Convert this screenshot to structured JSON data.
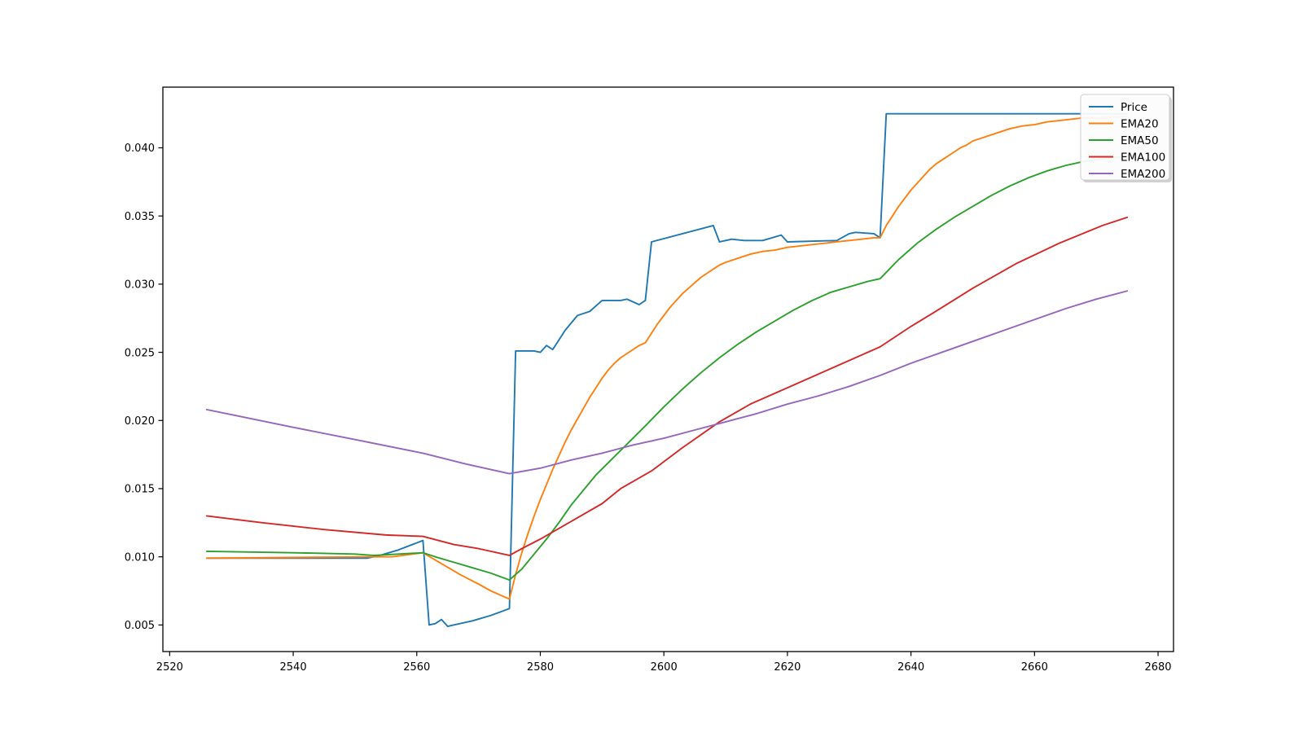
{
  "figure": {
    "background": "#ffffff"
  },
  "chart_data": {
    "type": "line",
    "title": "",
    "xlabel": "",
    "ylabel": "",
    "grid": false,
    "xlim": [
      2518.9,
      2682.5
    ],
    "ylim": [
      0.00305,
      0.04445
    ],
    "x_ticks": [
      2520,
      2540,
      2560,
      2580,
      2600,
      2620,
      2640,
      2660,
      2680
    ],
    "x_tick_labels": [
      "2520",
      "2540",
      "2560",
      "2580",
      "2600",
      "2620",
      "2640",
      "2660",
      "2680"
    ],
    "y_ticks": [
      0.005,
      0.01,
      0.015,
      0.02,
      0.025,
      0.03,
      0.035,
      0.04
    ],
    "y_tick_labels": [
      "0.005",
      "0.010",
      "0.015",
      "0.020",
      "0.025",
      "0.030",
      "0.035",
      "0.040"
    ],
    "legend": {
      "position": "upper right",
      "entries": [
        "Price",
        "EMA20",
        "EMA50",
        "EMA100",
        "EMA200"
      ]
    },
    "series": [
      {
        "name": "Price",
        "color": "#1f77b4",
        "points": [
          [
            2526,
            0.0099
          ],
          [
            2552,
            0.0099
          ],
          [
            2554,
            0.0101
          ],
          [
            2557,
            0.0105
          ],
          [
            2561,
            0.0112
          ],
          [
            2562,
            0.005
          ],
          [
            2563,
            0.0051
          ],
          [
            2564,
            0.0054
          ],
          [
            2565,
            0.0049
          ],
          [
            2566,
            0.005
          ],
          [
            2569,
            0.0053
          ],
          [
            2572,
            0.0057
          ],
          [
            2575,
            0.0062
          ],
          [
            2576,
            0.0251
          ],
          [
            2579,
            0.0251
          ],
          [
            2580,
            0.025
          ],
          [
            2581,
            0.0255
          ],
          [
            2582,
            0.0252
          ],
          [
            2583,
            0.0259
          ],
          [
            2584,
            0.0266
          ],
          [
            2586,
            0.0277
          ],
          [
            2588,
            0.028
          ],
          [
            2590,
            0.0288
          ],
          [
            2593,
            0.0288
          ],
          [
            2594,
            0.0289
          ],
          [
            2596,
            0.0285
          ],
          [
            2597,
            0.0288
          ],
          [
            2598,
            0.0331
          ],
          [
            2608,
            0.0343
          ],
          [
            2609,
            0.0331
          ],
          [
            2611,
            0.0333
          ],
          [
            2613,
            0.0332
          ],
          [
            2616,
            0.0332
          ],
          [
            2619,
            0.0336
          ],
          [
            2620,
            0.0331
          ],
          [
            2628,
            0.0332
          ],
          [
            2630,
            0.0337
          ],
          [
            2631,
            0.0338
          ],
          [
            2634,
            0.0337
          ],
          [
            2635,
            0.0334
          ],
          [
            2636,
            0.0425
          ],
          [
            2675,
            0.0425
          ]
        ]
      },
      {
        "name": "EMA20",
        "color": "#ff7f0e",
        "points": [
          [
            2526,
            0.0099
          ],
          [
            2552,
            0.01
          ],
          [
            2556,
            0.01
          ],
          [
            2561,
            0.0103
          ],
          [
            2564,
            0.0095
          ],
          [
            2567,
            0.0087
          ],
          [
            2570,
            0.008
          ],
          [
            2572,
            0.0075
          ],
          [
            2574,
            0.0071
          ],
          [
            2575,
            0.0069
          ],
          [
            2576,
            0.0087
          ],
          [
            2577,
            0.0103
          ],
          [
            2578,
            0.0117
          ],
          [
            2579,
            0.013
          ],
          [
            2580,
            0.0142
          ],
          [
            2581,
            0.0153
          ],
          [
            2582,
            0.0164
          ],
          [
            2583,
            0.0174
          ],
          [
            2584,
            0.0184
          ],
          [
            2585,
            0.0193
          ],
          [
            2586,
            0.0201
          ],
          [
            2587,
            0.0209
          ],
          [
            2588,
            0.0217
          ],
          [
            2589,
            0.0224
          ],
          [
            2590,
            0.0231
          ],
          [
            2591,
            0.0237
          ],
          [
            2592,
            0.0242
          ],
          [
            2593,
            0.0246
          ],
          [
            2594,
            0.0249
          ],
          [
            2595,
            0.0252
          ],
          [
            2596,
            0.0255
          ],
          [
            2597,
            0.0257
          ],
          [
            2598,
            0.0264
          ],
          [
            2599,
            0.0271
          ],
          [
            2600,
            0.0277
          ],
          [
            2601,
            0.0283
          ],
          [
            2602,
            0.0288
          ],
          [
            2603,
            0.0293
          ],
          [
            2604,
            0.0297
          ],
          [
            2605,
            0.0301
          ],
          [
            2606,
            0.0305
          ],
          [
            2607,
            0.0308
          ],
          [
            2608,
            0.0311
          ],
          [
            2609,
            0.0314
          ],
          [
            2610,
            0.0316
          ],
          [
            2612,
            0.0319
          ],
          [
            2614,
            0.0322
          ],
          [
            2616,
            0.0324
          ],
          [
            2618,
            0.0325
          ],
          [
            2620,
            0.0327
          ],
          [
            2622,
            0.0328
          ],
          [
            2624,
            0.0329
          ],
          [
            2626,
            0.033
          ],
          [
            2628,
            0.0331
          ],
          [
            2630,
            0.0332
          ],
          [
            2632,
            0.0333
          ],
          [
            2634,
            0.0334
          ],
          [
            2635,
            0.0334
          ],
          [
            2636,
            0.0343
          ],
          [
            2637,
            0.035
          ],
          [
            2638,
            0.0357
          ],
          [
            2639,
            0.0363
          ],
          [
            2640,
            0.0369
          ],
          [
            2641,
            0.0374
          ],
          [
            2642,
            0.0379
          ],
          [
            2643,
            0.0384
          ],
          [
            2644,
            0.0388
          ],
          [
            2645,
            0.0391
          ],
          [
            2646,
            0.0394
          ],
          [
            2647,
            0.0397
          ],
          [
            2648,
            0.04
          ],
          [
            2649,
            0.0402
          ],
          [
            2650,
            0.0405
          ],
          [
            2652,
            0.0408
          ],
          [
            2654,
            0.0411
          ],
          [
            2656,
            0.0414
          ],
          [
            2658,
            0.0416
          ],
          [
            2660,
            0.0417
          ],
          [
            2662,
            0.0419
          ],
          [
            2664,
            0.042
          ],
          [
            2666,
            0.0421
          ],
          [
            2668,
            0.0422
          ],
          [
            2670,
            0.0422
          ],
          [
            2675,
            0.0423
          ]
        ]
      },
      {
        "name": "EMA50",
        "color": "#2ca02c",
        "points": [
          [
            2526,
            0.0104
          ],
          [
            2540,
            0.0103
          ],
          [
            2550,
            0.0102
          ],
          [
            2553,
            0.0101
          ],
          [
            2557,
            0.0102
          ],
          [
            2561,
            0.0103
          ],
          [
            2563,
            0.01
          ],
          [
            2566,
            0.0096
          ],
          [
            2569,
            0.0092
          ],
          [
            2572,
            0.0088
          ],
          [
            2575,
            0.0083
          ],
          [
            2577,
            0.0091
          ],
          [
            2579,
            0.0102
          ],
          [
            2581,
            0.0113
          ],
          [
            2583,
            0.0125
          ],
          [
            2585,
            0.0138
          ],
          [
            2587,
            0.0149
          ],
          [
            2589,
            0.016
          ],
          [
            2591,
            0.0169
          ],
          [
            2593,
            0.0178
          ],
          [
            2595,
            0.0187
          ],
          [
            2597,
            0.0196
          ],
          [
            2600,
            0.021
          ],
          [
            2603,
            0.0223
          ],
          [
            2606,
            0.0235
          ],
          [
            2609,
            0.0246
          ],
          [
            2612,
            0.0256
          ],
          [
            2615,
            0.0265
          ],
          [
            2618,
            0.0273
          ],
          [
            2621,
            0.0281
          ],
          [
            2624,
            0.0288
          ],
          [
            2627,
            0.0294
          ],
          [
            2630,
            0.0298
          ],
          [
            2633,
            0.0302
          ],
          [
            2635,
            0.0304
          ],
          [
            2638,
            0.0318
          ],
          [
            2641,
            0.033
          ],
          [
            2644,
            0.034
          ],
          [
            2647,
            0.0349
          ],
          [
            2650,
            0.0357
          ],
          [
            2653,
            0.0365
          ],
          [
            2656,
            0.0372
          ],
          [
            2659,
            0.0378
          ],
          [
            2662,
            0.0383
          ],
          [
            2665,
            0.0387
          ],
          [
            2668,
            0.039
          ],
          [
            2671,
            0.0392
          ],
          [
            2675,
            0.0394
          ]
        ]
      },
      {
        "name": "EMA100",
        "color": "#d62728",
        "points": [
          [
            2526,
            0.013
          ],
          [
            2535,
            0.0125
          ],
          [
            2545,
            0.012
          ],
          [
            2555,
            0.0116
          ],
          [
            2561,
            0.0115
          ],
          [
            2566,
            0.0109
          ],
          [
            2570,
            0.0106
          ],
          [
            2575,
            0.0101
          ],
          [
            2577,
            0.0106
          ],
          [
            2580,
            0.0113
          ],
          [
            2585,
            0.0126
          ],
          [
            2590,
            0.0139
          ],
          [
            2593,
            0.015
          ],
          [
            2598,
            0.0163
          ],
          [
            2603,
            0.018
          ],
          [
            2609,
            0.0199
          ],
          [
            2614,
            0.0212
          ],
          [
            2620,
            0.0224
          ],
          [
            2625,
            0.0234
          ],
          [
            2630,
            0.0244
          ],
          [
            2635,
            0.0254
          ],
          [
            2640,
            0.0269
          ],
          [
            2644,
            0.028
          ],
          [
            2650,
            0.0297
          ],
          [
            2657,
            0.0315
          ],
          [
            2664,
            0.033
          ],
          [
            2671,
            0.0343
          ],
          [
            2675,
            0.0349
          ]
        ]
      },
      {
        "name": "EMA200",
        "color": "#9467bd",
        "points": [
          [
            2526,
            0.0208
          ],
          [
            2540,
            0.0195
          ],
          [
            2550,
            0.0186
          ],
          [
            2561,
            0.0176
          ],
          [
            2568,
            0.0168
          ],
          [
            2575,
            0.0161
          ],
          [
            2580,
            0.0165
          ],
          [
            2585,
            0.0171
          ],
          [
            2590,
            0.0176
          ],
          [
            2595,
            0.0182
          ],
          [
            2600,
            0.0187
          ],
          [
            2605,
            0.0193
          ],
          [
            2610,
            0.0199
          ],
          [
            2615,
            0.0205
          ],
          [
            2620,
            0.0212
          ],
          [
            2625,
            0.0218
          ],
          [
            2630,
            0.0225
          ],
          [
            2635,
            0.0233
          ],
          [
            2640,
            0.0242
          ],
          [
            2645,
            0.025
          ],
          [
            2650,
            0.0258
          ],
          [
            2655,
            0.0266
          ],
          [
            2660,
            0.0274
          ],
          [
            2665,
            0.0282
          ],
          [
            2670,
            0.0289
          ],
          [
            2675,
            0.0295
          ]
        ]
      }
    ]
  }
}
